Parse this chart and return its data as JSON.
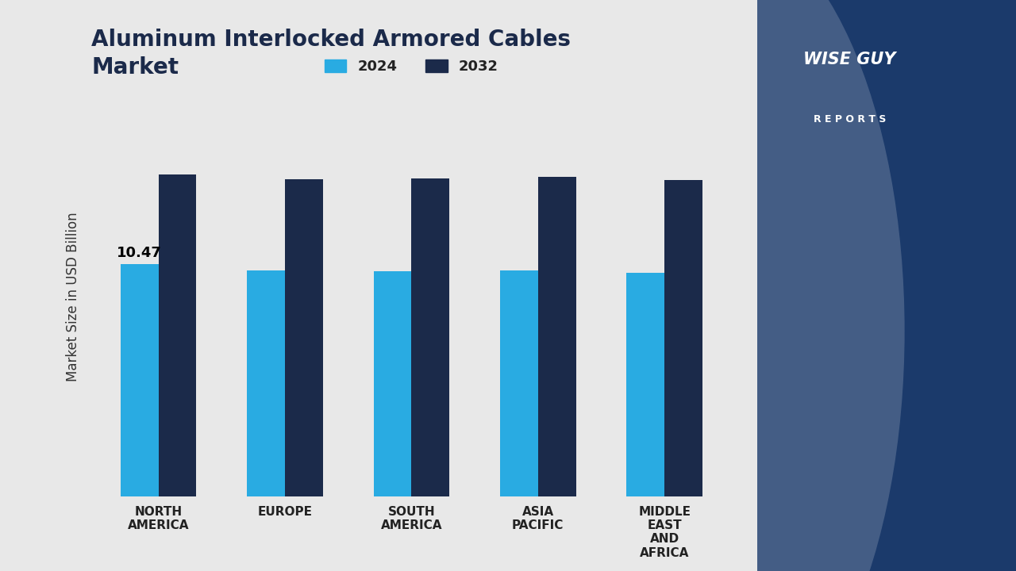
{
  "title": "Aluminum Interlocked Armored Cables\nMarket",
  "ylabel": "Market Size in USD Billion",
  "categories": [
    "NORTH\nAMERICA",
    "EUROPE",
    "SOUTH\nAMERICA",
    "ASIA\nPACIFIC",
    "MIDDLE\nEAST\nAND\nAFRICA"
  ],
  "values_2024": [
    10.47,
    10.2,
    10.15,
    10.18,
    10.1
  ],
  "values_2032": [
    14.5,
    14.3,
    14.35,
    14.4,
    14.25
  ],
  "color_2024": "#29ABE2",
  "color_2032": "#1B2A4A",
  "annotation_value": "10.47",
  "annotation_bar_index": 0,
  "legend_labels": [
    "2024",
    "2032"
  ],
  "bg_color": "#E8E8E8",
  "right_panel_color": "#1B3A6B",
  "title_color": "#1B2A4A",
  "bar_width": 0.3,
  "ylim": [
    0,
    18
  ]
}
